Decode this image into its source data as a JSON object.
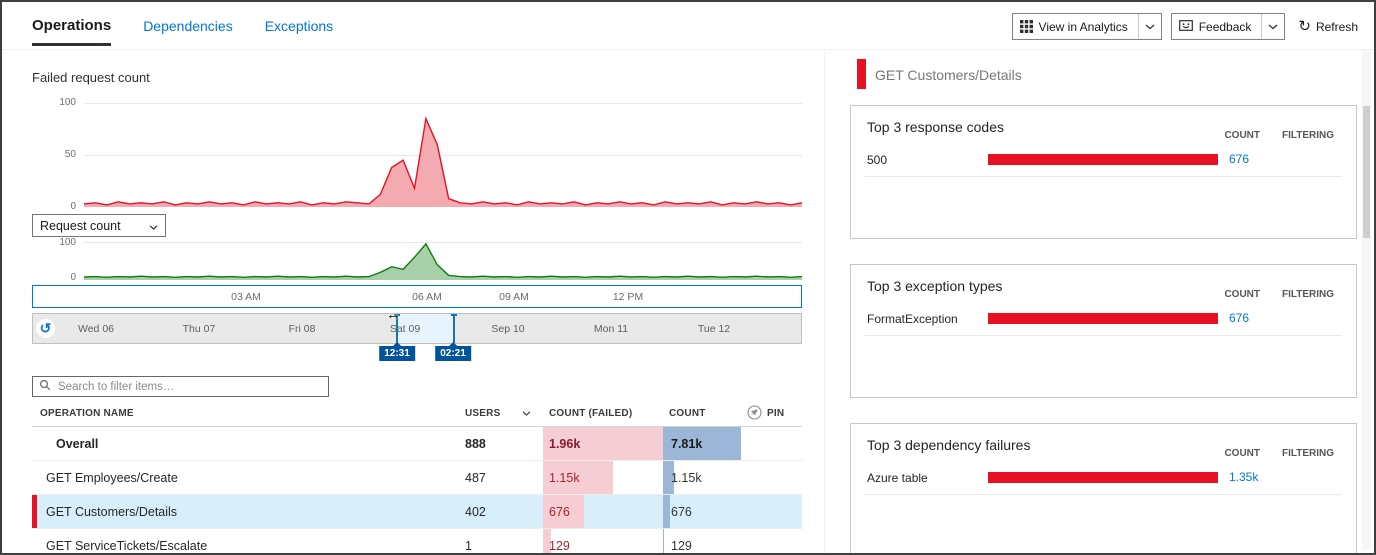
{
  "header": {
    "tabs": [
      {
        "label": "Operations",
        "active": true
      },
      {
        "label": "Dependencies",
        "active": false
      },
      {
        "label": "Exceptions",
        "active": false
      }
    ],
    "view_analytics_label": "View in Analytics",
    "feedback_label": "Feedback",
    "refresh_label": "Refresh"
  },
  "icons": {
    "refresh_glyph": "↻",
    "reset_zoom_glyph": "↺",
    "horizontal_resize_glyph": "↔"
  },
  "colors": {
    "accent_blue": "#0078d4",
    "failure_red": "#e81123",
    "failed_cell_pink": "#f5cdd3",
    "count_cell_blue": "#9cb6d8",
    "request_green": "#107c10"
  },
  "left": {
    "failed_chart_title": "Failed request count",
    "metric_dropdown_label": "Request count",
    "failed_y_ticks": [
      "100",
      "50",
      "0"
    ],
    "request_y_ticks": [
      "100",
      "0"
    ],
    "x_axis_labels": [
      "03 AM",
      "06 AM",
      "09 AM",
      "12 PM"
    ],
    "brush": {
      "dates": [
        "Wed 06",
        "Thu 07",
        "Fri 08",
        "Sat 09",
        "Sep 10",
        "Mon 11",
        "Tue 12"
      ],
      "start_time": "12:31",
      "end_time": "02:21"
    },
    "search_placeholder": "Search to filter items…",
    "table": {
      "columns": {
        "name": "OPERATION NAME",
        "users": "USERS",
        "failed": "COUNT (FAILED)",
        "count": "COUNT",
        "pin": "PIN"
      },
      "failed_max": 1960,
      "count_max": 7810,
      "rows": [
        {
          "name": "Overall",
          "users": "888",
          "failed_label": "1.96k",
          "failed": 1960,
          "count_label": "7.81k",
          "count": 7810,
          "bold": true,
          "selected": false
        },
        {
          "name": "GET Employees/Create",
          "users": "487",
          "failed_label": "1.15k",
          "failed": 1150,
          "count_label": "1.15k",
          "count": 1150,
          "bold": false,
          "selected": false
        },
        {
          "name": "GET Customers/Details",
          "users": "402",
          "failed_label": "676",
          "failed": 676,
          "count_label": "676",
          "count": 676,
          "bold": false,
          "selected": true
        },
        {
          "name": "GET ServiceTickets/Escalate",
          "users": "1",
          "failed_label": "129",
          "failed": 129,
          "count_label": "129",
          "count": 129,
          "bold": false,
          "selected": false
        }
      ]
    }
  },
  "chart_data": [
    {
      "type": "area",
      "title": "Failed request count",
      "color": "#e81123",
      "fill": "#f3aab1",
      "ylim": [
        0,
        100
      ],
      "y_ticks": [
        0,
        50,
        100
      ],
      "x_labels": [
        "03 AM",
        "06 AM",
        "09 AM",
        "12 PM"
      ],
      "values": [
        3,
        4,
        2,
        5,
        3,
        4,
        3,
        5,
        2,
        4,
        3,
        5,
        3,
        4,
        2,
        5,
        3,
        4,
        3,
        5,
        2,
        4,
        3,
        5,
        4,
        3,
        12,
        38,
        45,
        18,
        85,
        60,
        8,
        4,
        3,
        5,
        3,
        4,
        2,
        5,
        3,
        4,
        3,
        5,
        2,
        4,
        3,
        5,
        3,
        4,
        2,
        5,
        3,
        4,
        3,
        5,
        2,
        4,
        3,
        5,
        3,
        4,
        2,
        4
      ]
    },
    {
      "type": "area",
      "title": "Request count",
      "color": "#107c10",
      "fill": "#a8d0a8",
      "ylim": [
        0,
        100
      ],
      "y_ticks": [
        0,
        100
      ],
      "x_labels": [
        "03 AM",
        "06 AM",
        "09 AM",
        "12 PM"
      ],
      "values": [
        8,
        9,
        7,
        9,
        8,
        10,
        8,
        9,
        7,
        9,
        8,
        10,
        8,
        9,
        7,
        9,
        8,
        10,
        8,
        9,
        7,
        9,
        8,
        10,
        8,
        9,
        20,
        35,
        28,
        60,
        95,
        40,
        12,
        9,
        8,
        10,
        8,
        9,
        7,
        9,
        8,
        10,
        8,
        9,
        7,
        9,
        8,
        10,
        8,
        9,
        7,
        9,
        8,
        10,
        8,
        9,
        7,
        9,
        8,
        10,
        8,
        9,
        7,
        9
      ]
    }
  ],
  "detail": {
    "selected_operation": "GET Customers/Details",
    "cards": [
      {
        "title": "Top 3 response codes",
        "count_col": "COUNT",
        "filter_col": "FILTERING",
        "rows": [
          {
            "label": "500",
            "count_label": "676",
            "count": 676,
            "max": 676
          }
        ]
      },
      {
        "title": "Top 3 exception types",
        "count_col": "COUNT",
        "filter_col": "FILTERING",
        "rows": [
          {
            "label": "FormatException",
            "count_label": "676",
            "count": 676,
            "max": 676
          }
        ]
      },
      {
        "title": "Top 3 dependency failures",
        "count_col": "COUNT",
        "filter_col": "FILTERING",
        "rows": [
          {
            "label": "Azure table",
            "count_label": "1.35k",
            "count": 1350,
            "max": 1350
          }
        ]
      }
    ]
  }
}
